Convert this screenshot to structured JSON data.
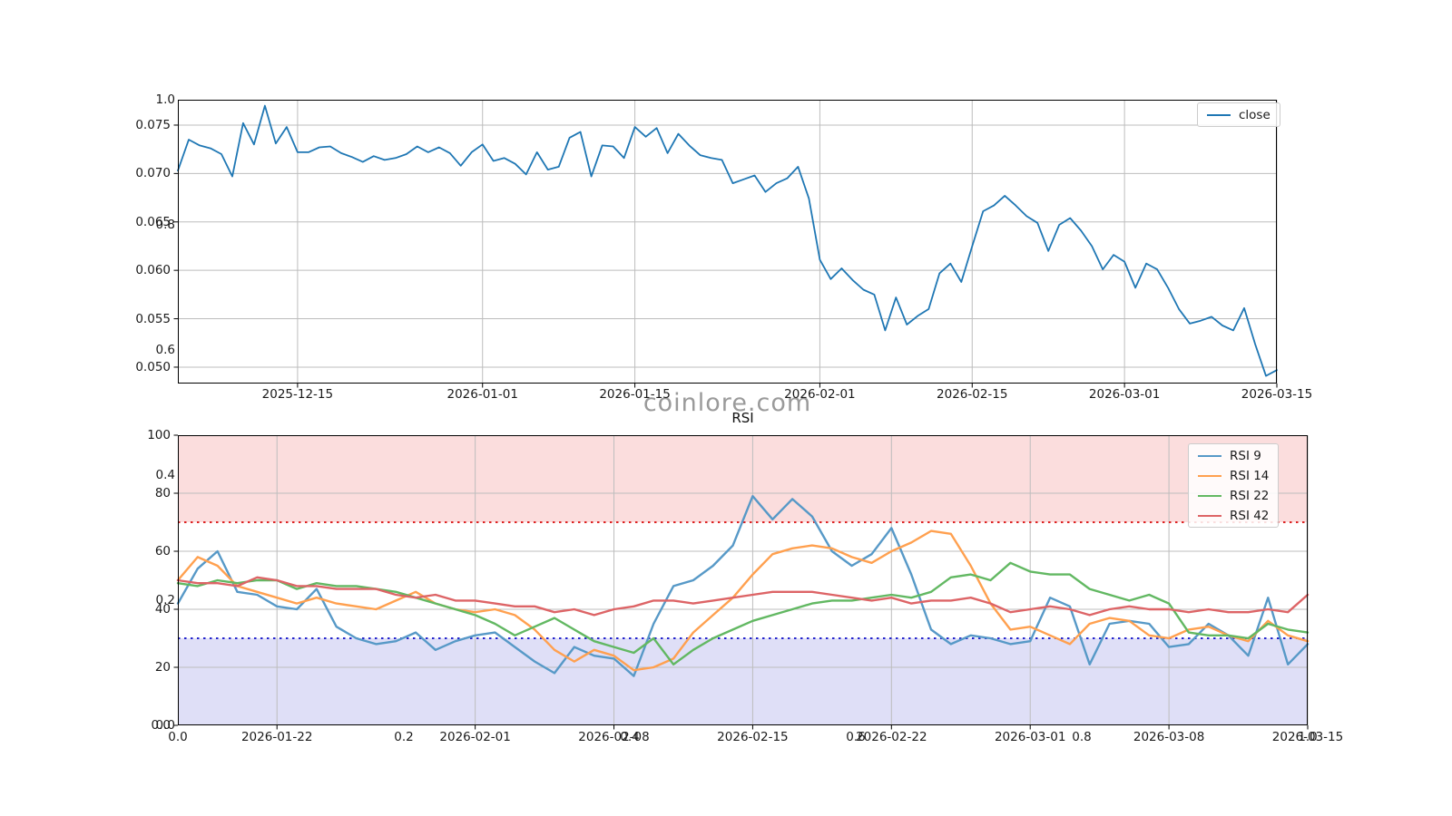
{
  "watermark": "coinlore.com",
  "colors": {
    "close_line": "#1f77b4",
    "rsi9_line": "#5799c7",
    "rsi14_line": "#ffa04f",
    "rsi22_line": "#62b862",
    "rsi42_line": "#dd6466",
    "overbought_band": "#fbdddd",
    "oversold_band": "#dfdff7",
    "overbought_dotted_line": "#dd2222",
    "oversold_dotted_line": "#2424cc",
    "gridline": "#bdbdbd",
    "spine": "#000000",
    "watermark_text": "#9a9a9a"
  },
  "overlay_axis": {
    "y_tick_labels": [
      "1.0",
      "0.8",
      "0.6",
      "0.4",
      "0.2",
      "0.0"
    ],
    "x_tick_labels": [
      "0.0",
      "0.2",
      "0.4",
      "0.6",
      "0.8",
      "1.0"
    ]
  },
  "chart_data": [
    {
      "type": "line",
      "title": "",
      "legend_position": "upper right",
      "grid": true,
      "x_start_date": "2025-12-04",
      "x_end_date": "2026-03-15",
      "x_tick_labels": [
        "2025-12-15",
        "2026-01-01",
        "2026-01-15",
        "2026-02-01",
        "2026-02-15",
        "2026-03-01",
        "2026-03-15"
      ],
      "x_tick_day_index": [
        11,
        28,
        42,
        59,
        73,
        87,
        101
      ],
      "y_tick_labels": [
        "0.075",
        "0.070",
        "0.065",
        "0.060",
        "0.055",
        "0.050"
      ],
      "y_tick_values": [
        0.075,
        0.07,
        0.065,
        0.06,
        0.055,
        0.05
      ],
      "ylim": [
        0.04831,
        0.07762
      ],
      "series": [
        {
          "name": "close",
          "color_key": "close_line",
          "line_width": 1.8,
          "values": [
            0.0703,
            0.0735,
            0.0729,
            0.0726,
            0.072,
            0.0697,
            0.0752,
            0.073,
            0.077,
            0.0731,
            0.0748,
            0.0722,
            0.0722,
            0.0727,
            0.0728,
            0.0721,
            0.0717,
            0.0712,
            0.0718,
            0.0714,
            0.0716,
            0.072,
            0.0728,
            0.0722,
            0.0727,
            0.0721,
            0.0708,
            0.0722,
            0.073,
            0.0713,
            0.0716,
            0.071,
            0.0699,
            0.0722,
            0.0704,
            0.0707,
            0.0737,
            0.0743,
            0.0697,
            0.0729,
            0.0728,
            0.0716,
            0.0748,
            0.0738,
            0.0747,
            0.0721,
            0.0741,
            0.0729,
            0.0719,
            0.0716,
            0.0714,
            0.069,
            0.0694,
            0.0698,
            0.0681,
            0.069,
            0.0695,
            0.0707,
            0.0674,
            0.0611,
            0.0591,
            0.0602,
            0.059,
            0.058,
            0.0575,
            0.0538,
            0.0572,
            0.0544,
            0.0553,
            0.056,
            0.0597,
            0.0607,
            0.0588,
            0.0625,
            0.0661,
            0.0667,
            0.0677,
            0.0667,
            0.0656,
            0.0649,
            0.062,
            0.0647,
            0.0654,
            0.0641,
            0.0625,
            0.0601,
            0.0616,
            0.0609,
            0.0582,
            0.0607,
            0.0601,
            0.0582,
            0.056,
            0.0545,
            0.0548,
            0.0552,
            0.0543,
            0.0538,
            0.0561,
            0.0524,
            0.0491,
            0.0497
          ]
        }
      ]
    },
    {
      "type": "line",
      "title": "RSI",
      "legend_position": "upper right",
      "grid": true,
      "x_start_date": "2026-01-17",
      "x_end_date": "2026-03-15",
      "x_tick_labels": [
        "2026-01-22",
        "2026-02-01",
        "2026-02-08",
        "2026-02-15",
        "2026-02-22",
        "2026-03-01",
        "2026-03-08",
        "2026-03-15"
      ],
      "x_tick_day_index": [
        5,
        15,
        22,
        29,
        36,
        43,
        50,
        57
      ],
      "y_tick_labels": [
        "100",
        "80",
        "60",
        "40",
        "20",
        "0.0"
      ],
      "y_tick_values": [
        100,
        80,
        60,
        40,
        20,
        0
      ],
      "ylim": [
        0,
        100
      ],
      "overbought_band": [
        70,
        100
      ],
      "oversold_band": [
        0,
        30
      ],
      "threshold_lines": [
        {
          "value": 70,
          "color_key": "overbought_dotted_line"
        },
        {
          "value": 30,
          "color_key": "oversold_dotted_line"
        }
      ],
      "series": [
        {
          "name": "RSI 9",
          "color_key": "rsi9_line",
          "line_width": 2.4,
          "values": [
            42,
            54,
            60,
            46,
            45,
            41,
            40,
            47,
            34,
            30,
            28,
            29,
            32,
            26,
            29,
            31,
            32,
            27,
            22,
            18,
            27,
            24,
            23,
            17,
            35,
            48,
            50,
            55,
            62,
            79,
            71,
            78,
            72,
            60,
            55,
            59,
            68,
            52,
            33,
            28,
            31,
            30,
            28,
            29,
            44,
            41,
            21,
            35,
            36,
            35,
            27,
            28,
            35,
            31,
            24,
            44,
            21,
            28
          ]
        },
        {
          "name": "RSI 14",
          "color_key": "rsi14_line",
          "line_width": 2.4,
          "values": [
            50,
            58,
            55,
            48,
            46,
            44,
            42,
            44,
            42,
            41,
            40,
            43,
            46,
            42,
            40,
            39,
            40,
            38,
            33,
            26,
            22,
            26,
            24,
            19,
            20,
            23,
            32,
            38,
            44,
            52,
            59,
            61,
            62,
            61,
            58,
            56,
            60,
            63,
            67,
            66,
            55,
            42,
            33,
            34,
            31,
            28,
            35,
            37,
            36,
            31,
            30,
            33,
            34,
            31,
            29,
            36,
            31,
            29
          ]
        },
        {
          "name": "RSI 22",
          "color_key": "rsi22_line",
          "line_width": 2.4,
          "values": [
            49,
            48,
            50,
            49,
            50,
            50,
            47,
            49,
            48,
            48,
            47,
            46,
            44,
            42,
            40,
            38,
            35,
            31,
            34,
            37,
            33,
            29,
            27,
            25,
            30,
            21,
            26,
            30,
            33,
            36,
            38,
            40,
            42,
            43,
            43,
            44,
            45,
            44,
            46,
            51,
            52,
            50,
            56,
            53,
            52,
            52,
            47,
            45,
            43,
            45,
            42,
            32,
            31,
            31,
            30,
            35,
            33,
            32
          ]
        },
        {
          "name": "RSI 42",
          "color_key": "rsi42_line",
          "line_width": 2.4,
          "values": [
            50,
            49,
            49,
            48,
            51,
            50,
            48,
            48,
            47,
            47,
            47,
            45,
            44,
            45,
            43,
            43,
            42,
            41,
            41,
            39,
            40,
            38,
            40,
            41,
            43,
            43,
            42,
            43,
            44,
            45,
            46,
            46,
            46,
            45,
            44,
            43,
            44,
            42,
            43,
            43,
            44,
            42,
            39,
            40,
            41,
            40,
            38,
            40,
            41,
            40,
            40,
            39,
            40,
            39,
            39,
            40,
            39,
            45
          ]
        }
      ]
    }
  ]
}
